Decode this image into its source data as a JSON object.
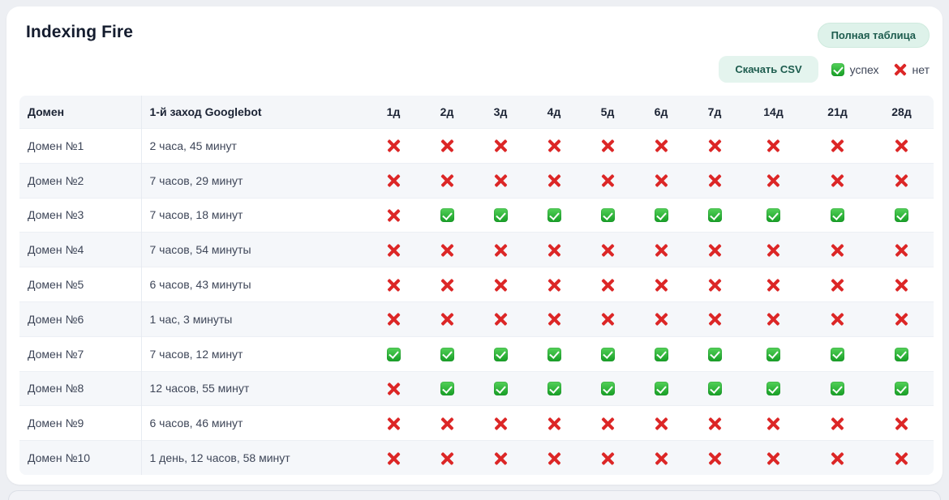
{
  "title": "Indexing Fire",
  "buttons": {
    "full_table": "Полная таблица",
    "download_csv": "Скачать CSV"
  },
  "legend": {
    "success_label": "успех",
    "fail_label": "нет"
  },
  "colors": {
    "success_green": "#1fa52c",
    "fail_red": "#dc2626",
    "button_bg": "#def2ea",
    "button_text": "#1d5c4e"
  },
  "table": {
    "col_domain": "Домен",
    "col_first_visit": "1-й заход Googlebot",
    "day_columns": [
      "1д",
      "2д",
      "3д",
      "4д",
      "5д",
      "6д",
      "7д",
      "14д",
      "21д",
      "28д"
    ],
    "rows": [
      {
        "domain": "Домен №1",
        "first_visit": "2 часа, 45 минут",
        "results": [
          "x",
          "x",
          "x",
          "x",
          "x",
          "x",
          "x",
          "x",
          "x",
          "x"
        ]
      },
      {
        "domain": "Домен №2",
        "first_visit": "7 часов, 29 минут",
        "results": [
          "x",
          "x",
          "x",
          "x",
          "x",
          "x",
          "x",
          "x",
          "x",
          "x"
        ]
      },
      {
        "domain": "Домен №3",
        "first_visit": "7 часов, 18 минут",
        "results": [
          "x",
          "check",
          "check",
          "check",
          "check",
          "check",
          "check",
          "check",
          "check",
          "check"
        ]
      },
      {
        "domain": "Домен №4",
        "first_visit": "7 часов, 54 минуты",
        "results": [
          "x",
          "x",
          "x",
          "x",
          "x",
          "x",
          "x",
          "x",
          "x",
          "x"
        ]
      },
      {
        "domain": "Домен №5",
        "first_visit": "6 часов, 43 минуты",
        "results": [
          "x",
          "x",
          "x",
          "x",
          "x",
          "x",
          "x",
          "x",
          "x",
          "x"
        ]
      },
      {
        "domain": "Домен №6",
        "first_visit": "1 час, 3 минуты",
        "results": [
          "x",
          "x",
          "x",
          "x",
          "x",
          "x",
          "x",
          "x",
          "x",
          "x"
        ]
      },
      {
        "domain": "Домен №7",
        "first_visit": "7 часов, 12 минут",
        "results": [
          "check",
          "check",
          "check",
          "check",
          "check",
          "check",
          "check",
          "check",
          "check",
          "check"
        ]
      },
      {
        "domain": "Домен №8",
        "first_visit": "12 часов, 55 минут",
        "results": [
          "x",
          "check",
          "check",
          "check",
          "check",
          "check",
          "check",
          "check",
          "check",
          "check"
        ]
      },
      {
        "domain": "Домен №9",
        "first_visit": "6 часов, 46 минут",
        "results": [
          "x",
          "x",
          "x",
          "x",
          "x",
          "x",
          "x",
          "x",
          "x",
          "x"
        ]
      },
      {
        "domain": "Домен №10",
        "first_visit": "1 день, 12 часов, 58 минут",
        "results": [
          "x",
          "x",
          "x",
          "x",
          "x",
          "x",
          "x",
          "x",
          "x",
          "x"
        ]
      }
    ]
  }
}
